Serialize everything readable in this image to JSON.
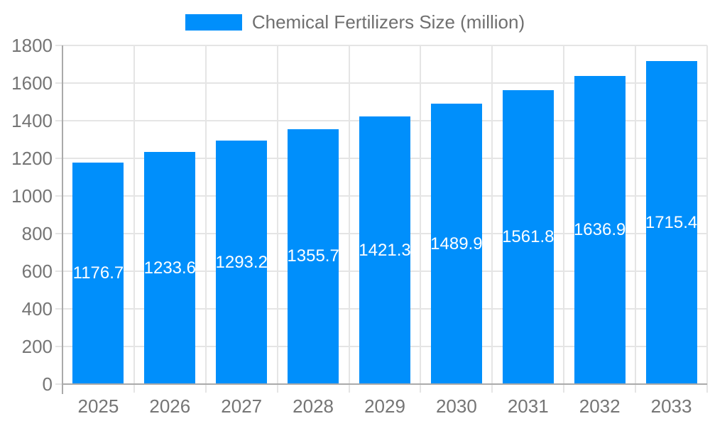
{
  "legend": {
    "label": "Chemical Fertilizers Size (million)"
  },
  "chart_data": {
    "type": "bar",
    "title": "",
    "categories": [
      "2025",
      "2026",
      "2027",
      "2028",
      "2029",
      "2030",
      "2031",
      "2032",
      "2033"
    ],
    "series": [
      {
        "name": "Chemical Fertilizers Size (million)",
        "values": [
          1176.7,
          1233.6,
          1293.2,
          1355.7,
          1421.3,
          1489.9,
          1561.8,
          1636.9,
          1715.4
        ]
      }
    ],
    "xlabel": "",
    "ylabel": "",
    "ylim": [
      0,
      1800
    ],
    "yticks": [
      0,
      200,
      400,
      600,
      800,
      1000,
      1200,
      1400,
      1600,
      1800
    ],
    "grid": true,
    "legend_position": "top",
    "bar_labels_visible": true,
    "bar_label_position": "center-inside"
  },
  "colors": {
    "bar": "#008ffb",
    "grid": "#e5e5e5",
    "axis": "#aaaaaa",
    "tick_text": "#757575",
    "legend_text": "#6f6f6f",
    "bar_label_text": "#ffffff",
    "background": "#ffffff"
  }
}
